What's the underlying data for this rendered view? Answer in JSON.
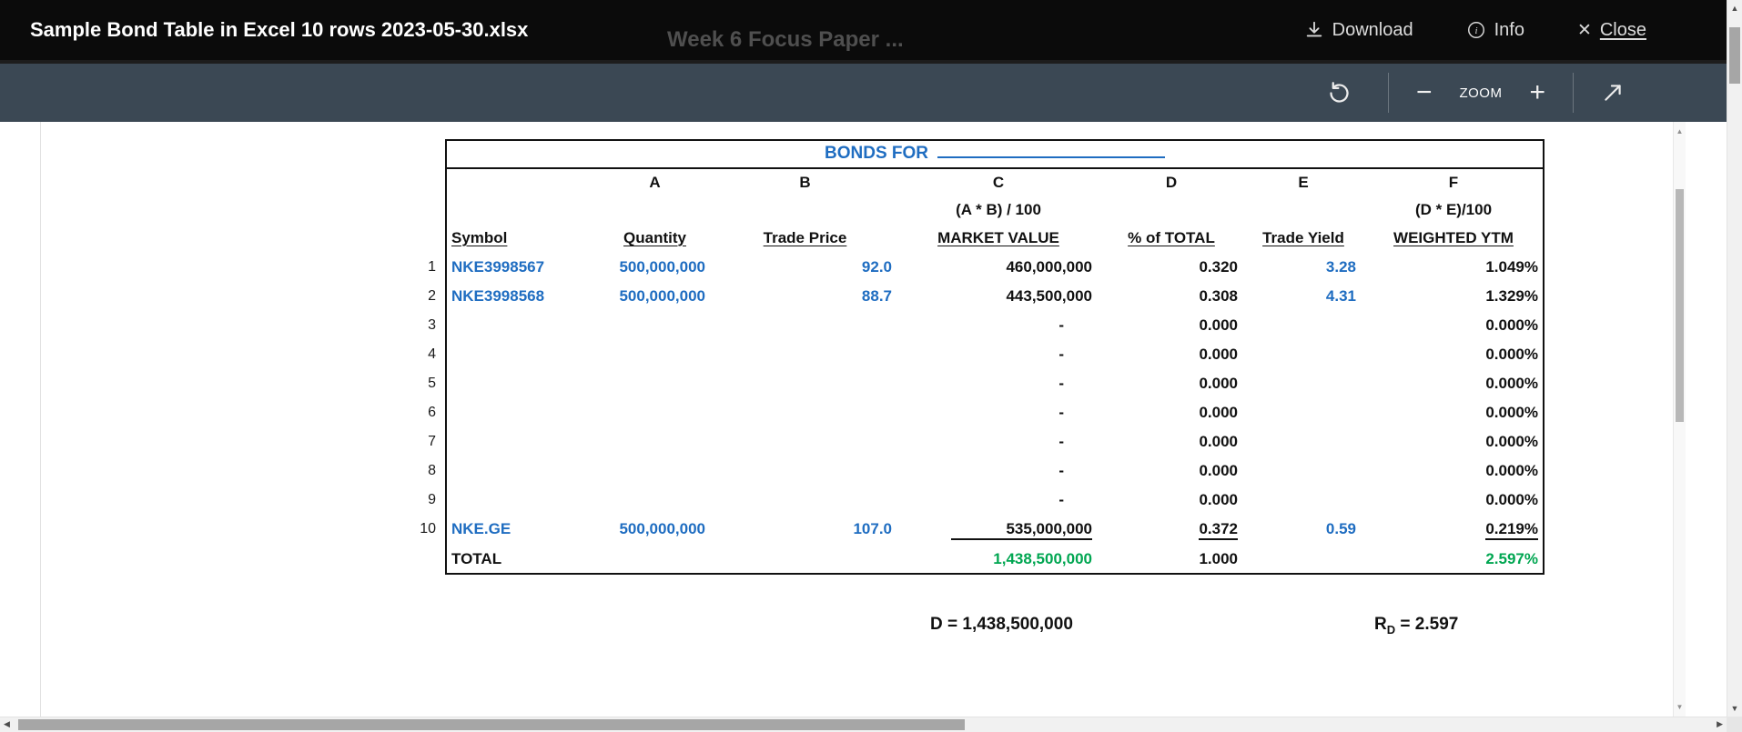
{
  "preview": {
    "filename": "Sample Bond Table in Excel 10 rows 2023-05-30.xlsx",
    "download_label": "Download",
    "info_label": "Info",
    "close_label": "Close",
    "close_glyph": "✕",
    "zoom_label": "ZOOM",
    "zoom_out_glyph": "−",
    "zoom_in_glyph": "+"
  },
  "background": {
    "obscured_text": "Week 6 Focus Paper ..."
  },
  "sheet": {
    "title": "BONDS FOR",
    "letters": [
      "A",
      "B",
      "C",
      "D",
      "E",
      "F"
    ],
    "formula_market_value": "(A * B) / 100",
    "formula_weighted_ytm": "(D * E)/100",
    "headers": {
      "symbol": "Symbol",
      "quantity": "Quantity",
      "trade_price": "Trade Price",
      "market_value": "MARKET VALUE",
      "pct_total": "% of TOTAL",
      "trade_yield": "Trade Yield",
      "weighted_ytm": "WEIGHTED YTM"
    },
    "rows": [
      {
        "n": "1",
        "symbol": "NKE3998567",
        "quantity": "500,000,000",
        "trade_price": "92.0",
        "market_value": "460,000,000",
        "pct_total": "0.320",
        "trade_yield": "3.28",
        "weighted_ytm": "1.049%"
      },
      {
        "n": "2",
        "symbol": "NKE3998568",
        "quantity": "500,000,000",
        "trade_price": "88.7",
        "market_value": "443,500,000",
        "pct_total": "0.308",
        "trade_yield": "4.31",
        "weighted_ytm": "1.329%"
      },
      {
        "n": "3",
        "symbol": "",
        "quantity": "",
        "trade_price": "",
        "market_value": "-",
        "pct_total": "0.000",
        "trade_yield": "",
        "weighted_ytm": "0.000%"
      },
      {
        "n": "4",
        "symbol": "",
        "quantity": "",
        "trade_price": "",
        "market_value": "-",
        "pct_total": "0.000",
        "trade_yield": "",
        "weighted_ytm": "0.000%"
      },
      {
        "n": "5",
        "symbol": "",
        "quantity": "",
        "trade_price": "",
        "market_value": "-",
        "pct_total": "0.000",
        "trade_yield": "",
        "weighted_ytm": "0.000%"
      },
      {
        "n": "6",
        "symbol": "",
        "quantity": "",
        "trade_price": "",
        "market_value": "-",
        "pct_total": "0.000",
        "trade_yield": "",
        "weighted_ytm": "0.000%"
      },
      {
        "n": "7",
        "symbol": "",
        "quantity": "",
        "trade_price": "",
        "market_value": "-",
        "pct_total": "0.000",
        "trade_yield": "",
        "weighted_ytm": "0.000%"
      },
      {
        "n": "8",
        "symbol": "",
        "quantity": "",
        "trade_price": "",
        "market_value": "-",
        "pct_total": "0.000",
        "trade_yield": "",
        "weighted_ytm": "0.000%"
      },
      {
        "n": "9",
        "symbol": "",
        "quantity": "",
        "trade_price": "",
        "market_value": "-",
        "pct_total": "0.000",
        "trade_yield": "",
        "weighted_ytm": "0.000%"
      },
      {
        "n": "10",
        "symbol": "NKE.GE",
        "quantity": "500,000,000",
        "trade_price": "107.0",
        "market_value": "535,000,000",
        "pct_total": "0.372",
        "trade_yield": "0.59",
        "weighted_ytm": "0.219%",
        "sum_line": true
      }
    ],
    "total": {
      "label": "TOTAL",
      "market_value": "1,438,500,000",
      "pct_total": "1.000",
      "weighted_ytm": "2.597%"
    },
    "footnote_d": "D = 1,438,500,000",
    "footnote_r": {
      "base": "R",
      "sub": "D",
      "rest": " = 2.597"
    }
  },
  "colors": {
    "accent_blue": "#1F6DC1",
    "total_green": "#00A651",
    "toolbar_bg": "#3B4854"
  }
}
